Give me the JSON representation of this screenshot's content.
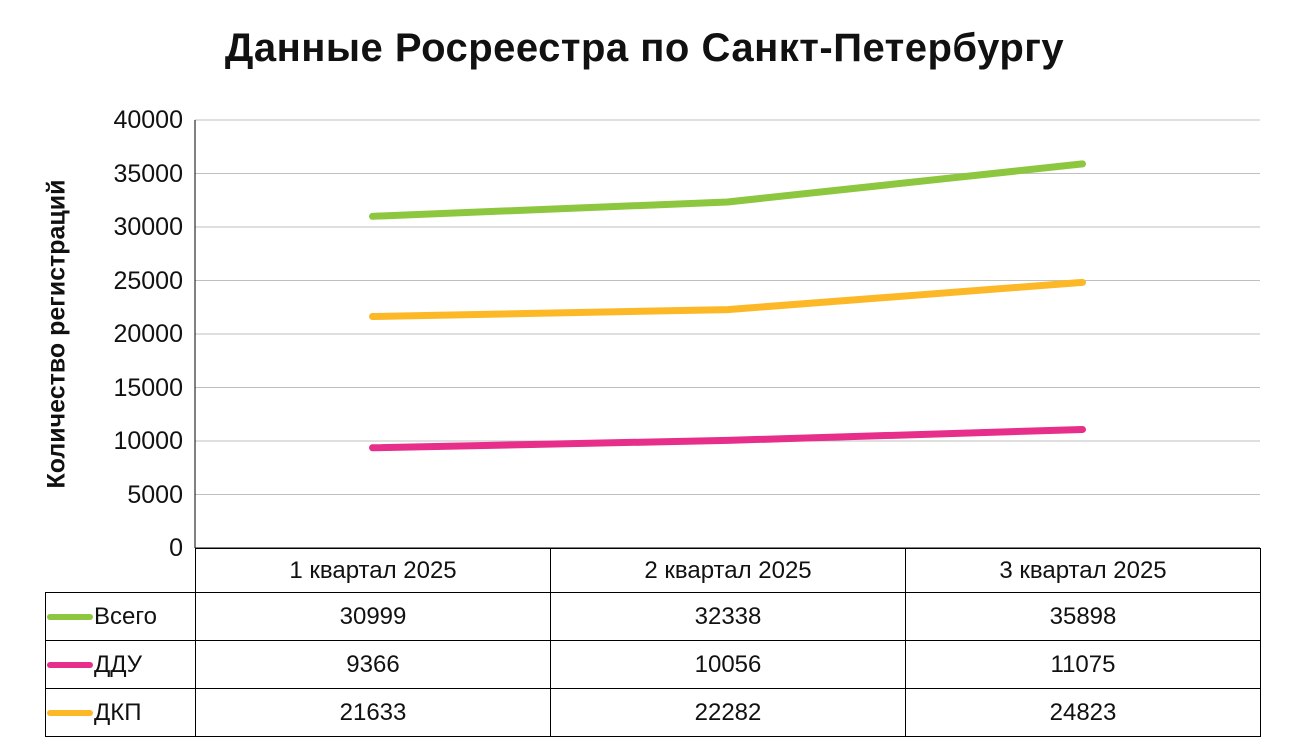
{
  "chart_data": {
    "type": "line",
    "title": "Данные Росреестра по Санкт-Петербургу",
    "ylabel": "Количество регистраций",
    "xlabel": "",
    "categories": [
      "1 квартал 2025",
      "2 квартал 2025",
      "3 квартал 2025"
    ],
    "series": [
      {
        "name": "Всего",
        "values": [
          30999,
          32338,
          35898
        ],
        "color": "#8DC63F"
      },
      {
        "name": "ДДУ",
        "values": [
          9366,
          10056,
          11075
        ],
        "color": "#E62E8A"
      },
      {
        "name": "ДКП",
        "values": [
          21633,
          22282,
          24823
        ],
        "color": "#FDB827"
      }
    ],
    "ylim": [
      0,
      40000
    ],
    "ytick_step": 5000,
    "grid": true,
    "legend_position": "data-table-left",
    "gridline_color": "#BFBFBF",
    "axis_color": "#000000",
    "table_border_color": "#000000",
    "background_color": "#FFFFFF"
  }
}
